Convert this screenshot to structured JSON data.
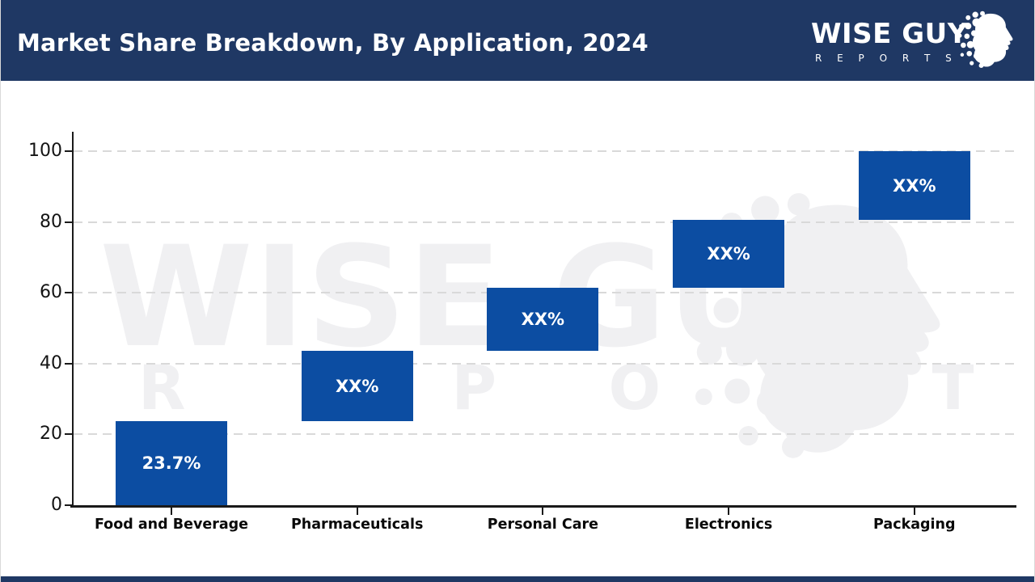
{
  "header": {
    "title": "Market Share Breakdown, By Application, 2024",
    "bg_color": "#1f3864",
    "logo": {
      "line1": "WISE GUY",
      "line2": "R E P O R T S"
    }
  },
  "watermark": {
    "line1": "WISE GUY",
    "line2": "R E P O R T S"
  },
  "chart_data": {
    "type": "bar",
    "subtype": "waterfall",
    "title": "Market Share Breakdown, By Application, 2024",
    "categories": [
      "Food and Beverage",
      "Pharmaceuticals",
      "Personal Care",
      "Electronics",
      "Packaging"
    ],
    "segments": [
      {
        "category": "Food and Beverage",
        "start": 0,
        "end": 23.7,
        "label": "23.7%"
      },
      {
        "category": "Pharmaceuticals",
        "start": 23.7,
        "end": 43.5,
        "label": "XX%"
      },
      {
        "category": "Personal Care",
        "start": 43.5,
        "end": 61.5,
        "label": "XX%"
      },
      {
        "category": "Electronics",
        "start": 61.5,
        "end": 80.5,
        "label": "XX%"
      },
      {
        "category": "Packaging",
        "start": 80.5,
        "end": 100,
        "label": "XX%"
      }
    ],
    "y_ticks": [
      0,
      20,
      40,
      60,
      80,
      100
    ],
    "ylim": [
      0,
      106
    ],
    "xlabel": "",
    "ylabel": "",
    "bar_color": "#0c4da2",
    "grid": "horizontal-dashed",
    "legend": "none"
  }
}
